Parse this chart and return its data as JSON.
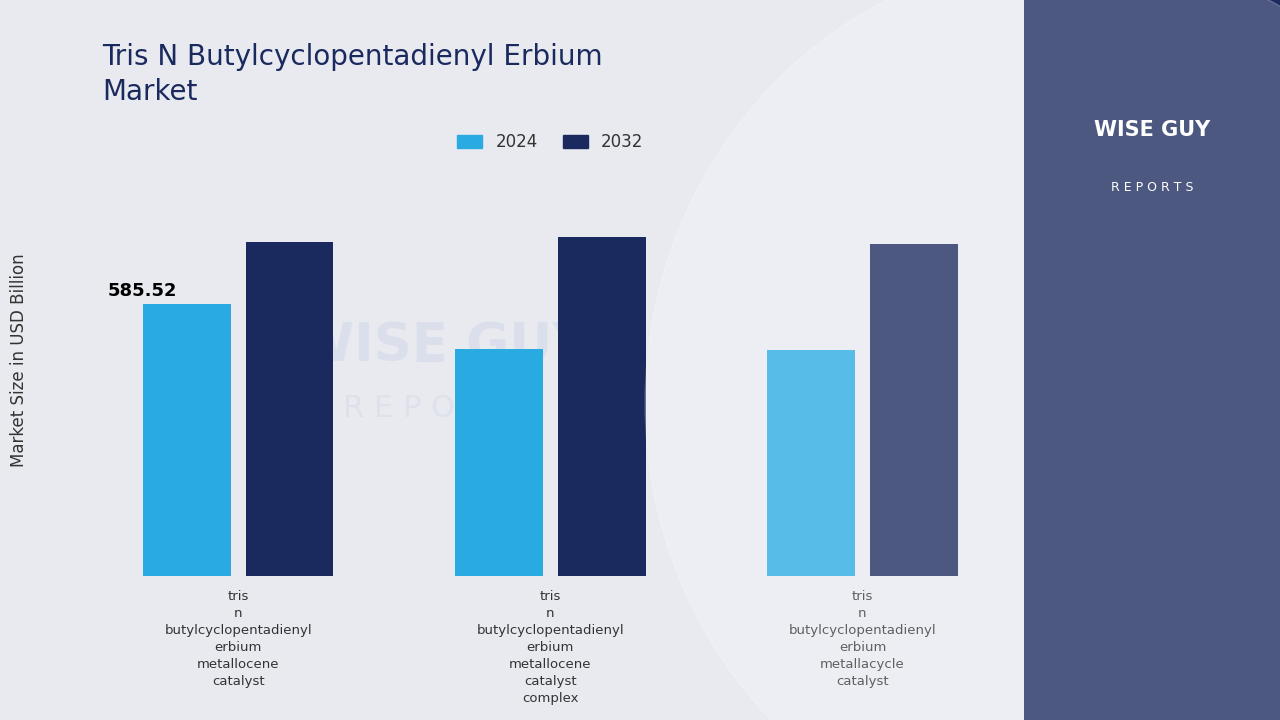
{
  "title": "Tris N Butylcyclopentadienyl Erbium\nMarket",
  "ylabel": "Market Size in USD Billion",
  "categories": [
    "tris\nn\nbutylcyclopentadienyl\nerbium\nmetallocene\ncatalyst",
    "tris\nn\nbutylcyclopentadienyl\nerbium\nmetallocene\ncatalyst\ncomplex",
    "tris\nn\nbutylcyclopentadienyl\nerbium\nmetallacycle\ncatalyst"
  ],
  "values_2024": [
    585.52,
    490.0,
    488.0
  ],
  "values_2032": [
    720.0,
    730.0,
    715.0
  ],
  "bar_color_2024": "#29ABE2",
  "bar_color_2032": "#1B2A5E",
  "annotation_value": "585.52",
  "background_color": "#E8EAF0",
  "right_panel_color": "#1B2A5E",
  "title_color": "#1B2A5E",
  "legend_labels": [
    "2024",
    "2032"
  ],
  "ylim": [
    0,
    900
  ]
}
